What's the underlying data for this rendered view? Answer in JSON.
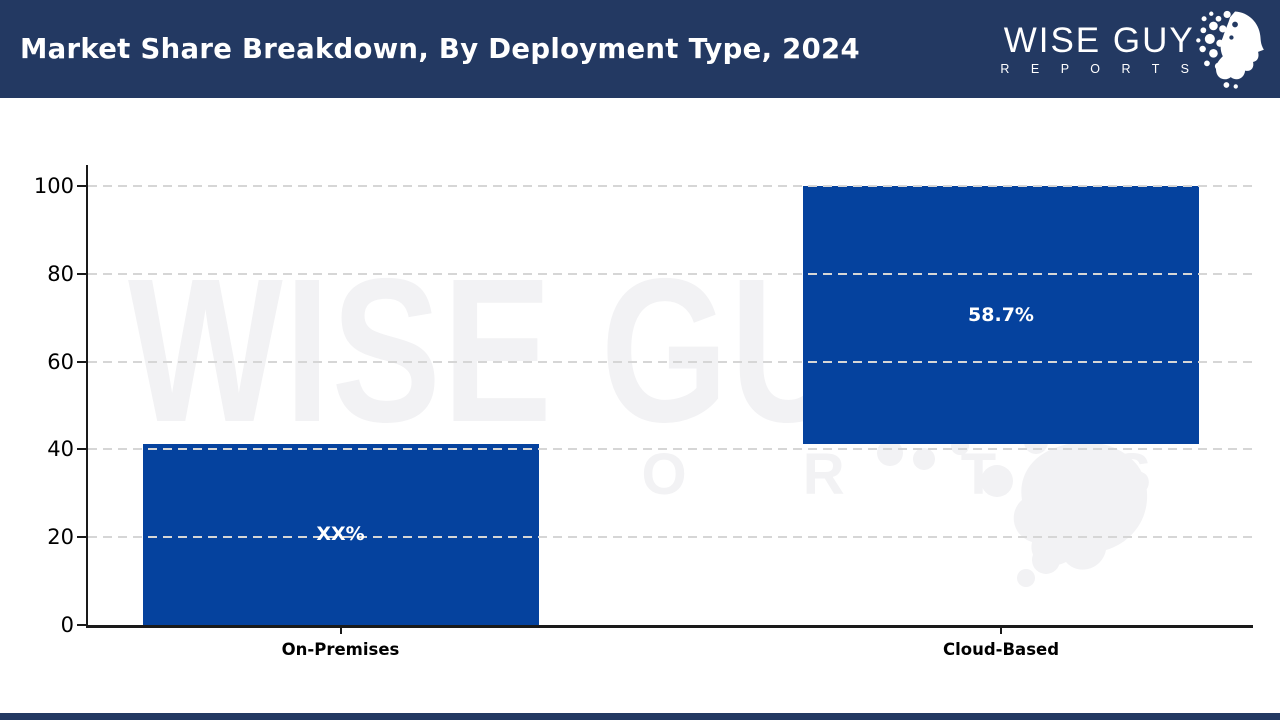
{
  "header": {
    "title": "Market Share Breakdown, By Deployment Type, 2024",
    "bg_color": "#233962",
    "logo": {
      "line1": "WISE GUY",
      "line2": "R E P O R T S",
      "face_icon": "dotted-head-profile"
    }
  },
  "watermark": {
    "line1": "WISE GUY",
    "line2": "R E P O R T S",
    "color": "#f2f2f4"
  },
  "chart_data": {
    "type": "bar",
    "subtype": "stacked-percentage-breakdown",
    "title": "Market Share Breakdown, By Deployment Type, 2024",
    "categories": [
      "On-Premises",
      "Cloud-Based"
    ],
    "series": [
      {
        "name": "On-Premises",
        "segment_start": 0,
        "segment_end": 41.3,
        "label": "XX%"
      },
      {
        "name": "Cloud-Based",
        "segment_start": 41.3,
        "segment_end": 100,
        "label": "58.7%"
      }
    ],
    "values_implied": [
      41.3,
      58.7
    ],
    "xlabel": "",
    "ylabel": "",
    "ylim": [
      0,
      100
    ],
    "y_ticks": [
      0,
      20,
      40,
      60,
      80,
      100
    ],
    "grid": "horizontal dashed, drawn over bars",
    "legend": "none",
    "bar_color": "#05429e",
    "bar_label_color": "#ffffff",
    "axis_color": "#1a1a1a",
    "gridline_color": "#d6d6d6"
  }
}
